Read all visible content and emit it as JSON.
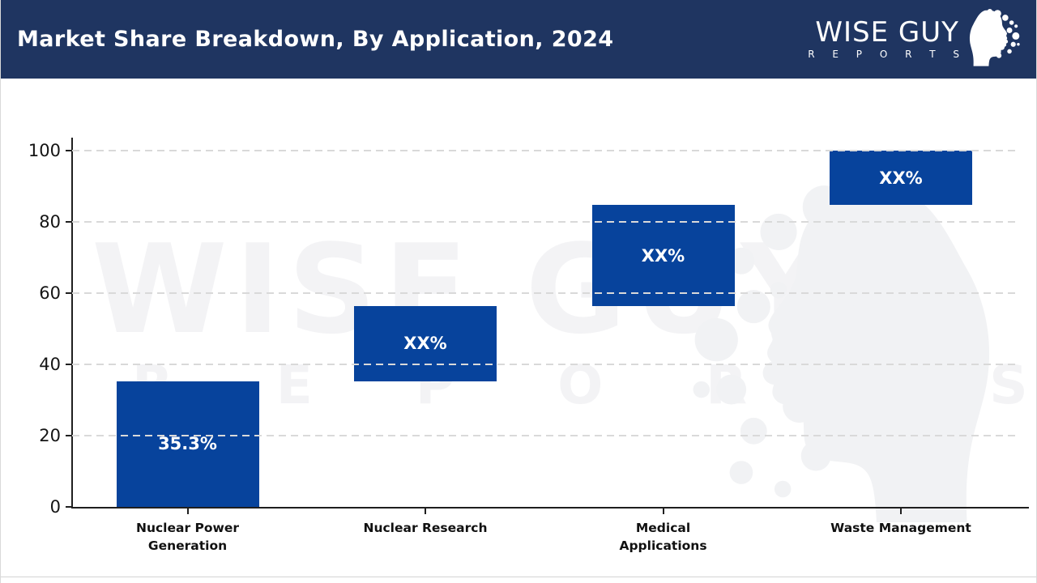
{
  "header": {
    "title": "Market Share Breakdown, By Application, 2024",
    "bg_color": "#1f3561",
    "logo": {
      "line1": "WISE GUY",
      "line2": "R E P O R T S"
    }
  },
  "watermark": {
    "line1": "WISE GUY",
    "line2": "R E P O R T S"
  },
  "chart_data": {
    "type": "bar",
    "subtype": "waterfall",
    "title": "Market Share Breakdown, By Application, 2024",
    "categories": [
      "Nuclear Power Generation",
      "Nuclear Research",
      "Medical Applications",
      "Waste Management"
    ],
    "category_lines": [
      [
        "Nuclear Power",
        "Generation"
      ],
      [
        "Nuclear Research"
      ],
      [
        "Medical",
        "Applications"
      ],
      [
        "Waste Management"
      ]
    ],
    "segments": [
      {
        "label": "35.3%",
        "start": 0,
        "end": 35.3
      },
      {
        "label": "XX%",
        "start": 35.3,
        "end": 56.4
      },
      {
        "label": "XX%",
        "start": 56.4,
        "end": 84.7
      },
      {
        "label": "XX%",
        "start": 84.7,
        "end": 100
      }
    ],
    "yticks": [
      0,
      20,
      40,
      60,
      80,
      100
    ],
    "ylim": [
      0,
      103
    ],
    "xlabel": "",
    "ylabel": "",
    "bar_color": "#07439c",
    "grid": "horizontal-dashed",
    "grid_color": "#d9d9d9",
    "legend": "none"
  }
}
